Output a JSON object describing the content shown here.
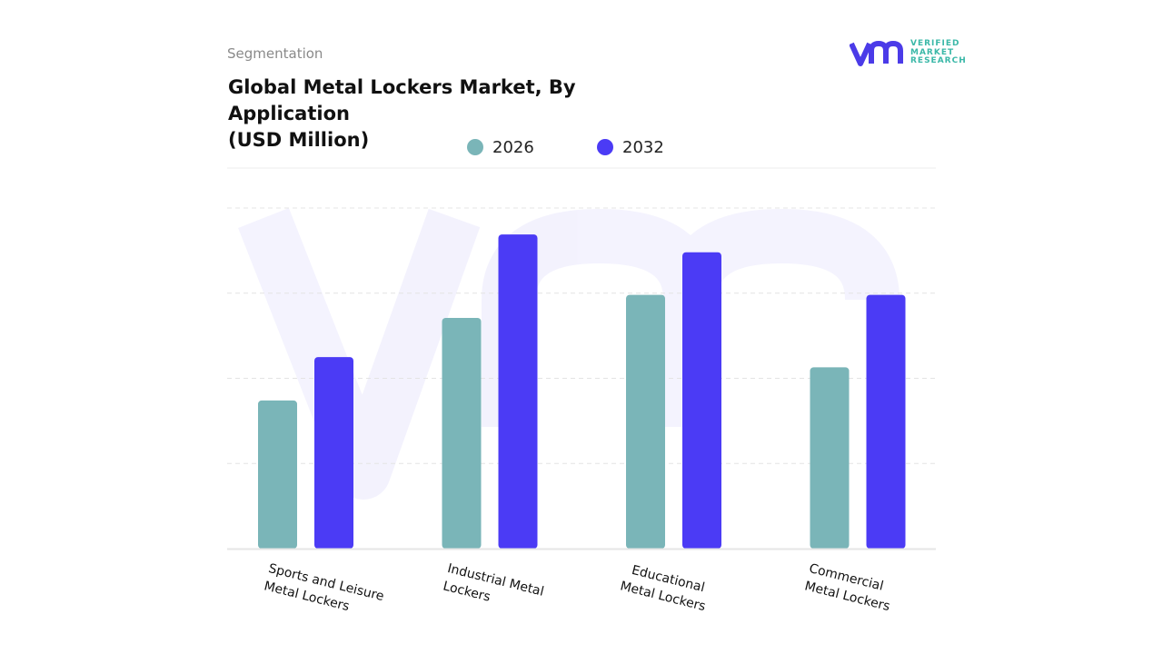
{
  "header": {
    "segment_label": "Segmentation",
    "title_line1": "Global Metal Lockers Market, By Application",
    "title_line2": "(USD Million)"
  },
  "logo": {
    "mark": "vmr",
    "text": [
      "VERIFIED",
      "MARKET",
      "RESEARCH"
    ],
    "color_mark": "#4b3be8",
    "color_text": "#3bb8a8"
  },
  "chart_data": {
    "type": "bar",
    "title": "Global Metal Lockers Market, By Application (USD Million)",
    "categories": [
      [
        "Sports and Leisure",
        "Metal Lockers"
      ],
      [
        "Industrial Metal",
        "Lockers"
      ],
      [
        "Educational",
        "Metal Lockers"
      ],
      [
        "Commercial",
        "Metal Lockers"
      ]
    ],
    "series": [
      {
        "name": "2026",
        "color": "#7ab5b8",
        "values": [
          1.74,
          2.71,
          2.98,
          2.13
        ]
      },
      {
        "name": "2032",
        "color": "#4b3bf5",
        "values": [
          2.25,
          3.69,
          3.48,
          2.98
        ]
      }
    ],
    "ylim": [
      0,
      4
    ],
    "y_axis_labels_shown": false,
    "grid": true,
    "legend_position": "top-center",
    "xlabel": "",
    "ylabel": ""
  }
}
